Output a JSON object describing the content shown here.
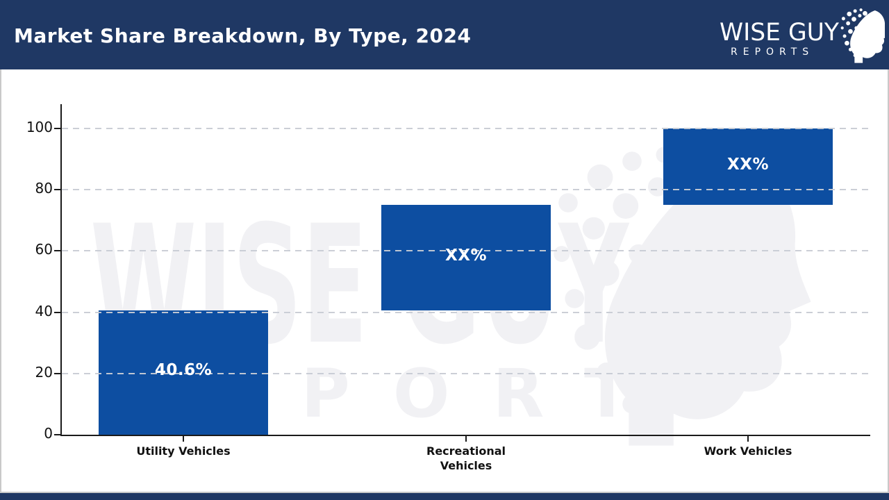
{
  "header": {
    "title": "Market Share Breakdown, By Type, 2024",
    "logo": {
      "line1": "WISE GUY",
      "line2": "REPORTS"
    }
  },
  "watermark": {
    "line1": "WISE GUY",
    "line2": "REPORTS"
  },
  "colors": {
    "header_navy": "#1f3864",
    "bar_blue": "#0d4ea1",
    "watermark_gray": "#f1f1f4",
    "grid_gray": "#cccccc",
    "axis_black": "#1a1a1a"
  },
  "chart_data": {
    "type": "bar",
    "subtype": "stacked-waterfall",
    "title": "Market Share Breakdown, By Type, 2024",
    "categories": [
      "Utility Vehicles",
      "Recreational Vehicles",
      "Work Vehicles"
    ],
    "category_labels": [
      "Utility Vehicles",
      "Recreational\nVehicles",
      "Work Vehicles"
    ],
    "segments": [
      {
        "category": "Utility Vehicles",
        "start": 0,
        "end": 40.6,
        "label": "40.6%"
      },
      {
        "category": "Recreational Vehicles",
        "start": 40.6,
        "end": 75,
        "label": "XX%"
      },
      {
        "category": "Work Vehicles",
        "start": 75,
        "end": 100,
        "label": "XX%"
      }
    ],
    "y_ticks": [
      0,
      20,
      40,
      60,
      80,
      100
    ],
    "ylim": [
      0,
      108
    ],
    "xlabel": "",
    "ylabel": "",
    "grid": "horizontal-dashed",
    "legend": "none",
    "bar_color": "#0d4ea1",
    "label_color": "#ffffff"
  }
}
